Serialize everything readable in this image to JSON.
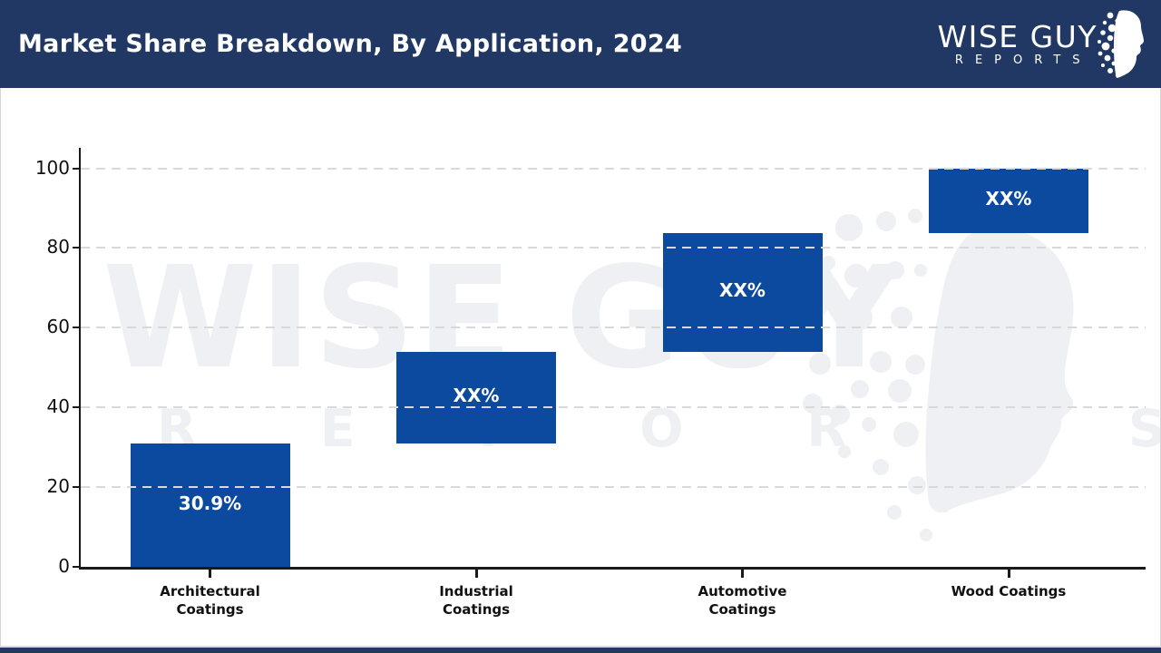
{
  "header": {
    "title": "Market Share Breakdown, By Application, 2024",
    "logo": {
      "line1": "WISE GUY",
      "line2": "REPORTS"
    }
  },
  "watermark": {
    "line1": "WISE GUY",
    "line2": "R E P O R T S"
  },
  "colors": {
    "header_bg": "#213864",
    "bar_fill": "#0b4a9e",
    "bar_label_text": "#ffffff",
    "gridline": "#d9d9d9",
    "axis": "#1a1a1a",
    "watermark": "#eff0f3",
    "title_text": "#ffffff"
  },
  "chart_data": {
    "type": "bar",
    "subtype": "waterfall",
    "title": "Market Share Breakdown, By Application, 2024",
    "categories": [
      "Architectural Coatings",
      "Industrial Coatings",
      "Automotive Coatings",
      "Wood Coatings"
    ],
    "category_lines": [
      [
        "Architectural",
        "Coatings"
      ],
      [
        "Industrial",
        "Coatings"
      ],
      [
        "Automotive",
        "Coatings"
      ],
      [
        "Wood Coatings"
      ]
    ],
    "bars": [
      {
        "start": 0,
        "end": 30.9,
        "value": 30.9,
        "label": "30.9%"
      },
      {
        "start": 30.9,
        "end": 54.0,
        "value": 23.1,
        "label": "XX%"
      },
      {
        "start": 54.0,
        "end": 83.8,
        "value": 29.8,
        "label": "XX%"
      },
      {
        "start": 83.8,
        "end": 100.0,
        "value": 16.2,
        "label": "XX%"
      }
    ],
    "xlabel": "",
    "ylabel": "",
    "ylim": [
      0,
      100
    ],
    "yticks": [
      0,
      20,
      40,
      60,
      80,
      100
    ],
    "grid": "horizontal-dashed",
    "legend": null
  }
}
